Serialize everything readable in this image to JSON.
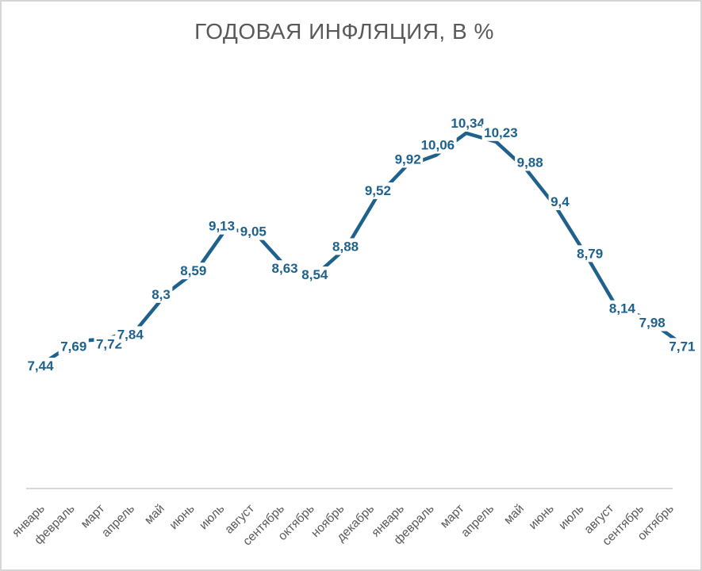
{
  "chart_data": {
    "type": "line",
    "title": "ГОДОВАЯ ИНФЛЯЦИЯ, В %",
    "categories": [
      "январь",
      "февраль",
      "март",
      "апрель",
      "май",
      "июнь",
      "июль",
      "август",
      "сентябрь",
      "октябрь",
      "ноябрь",
      "декабрь",
      "январь",
      "февраль",
      "март",
      "апрель",
      "май",
      "июнь",
      "июль",
      "август",
      "сентябрь",
      "октябрь"
    ],
    "values": [
      7.44,
      7.69,
      7.72,
      7.84,
      8.3,
      8.59,
      9.13,
      9.05,
      8.63,
      8.54,
      8.88,
      9.52,
      9.92,
      10.06,
      10.34,
      10.23,
      9.88,
      9.4,
      8.79,
      8.14,
      7.98,
      7.71
    ],
    "value_labels": [
      "7,44",
      "7,69",
      "7,72",
      "7,84",
      "8,3",
      "8,59",
      "9,13",
      "9,05",
      "8,63",
      "8,54",
      "8,88",
      "9,52",
      "9,92",
      "10,06",
      "10,34",
      "10,23",
      "9,88",
      "9,4",
      "8,79",
      "8,14",
      "7,98",
      "7,71"
    ],
    "xlabel": "",
    "ylabel": "",
    "ylim": [
      7.0,
      10.6
    ],
    "y_axis": "hidden",
    "grid": false,
    "legend": "none",
    "x_tick_rotation": 45,
    "colors": {
      "line": "#1e618c",
      "data_labels": "#1e618c",
      "title": "#595959",
      "axis_labels": "#595959",
      "axis_line": "#d9d9d9"
    }
  }
}
